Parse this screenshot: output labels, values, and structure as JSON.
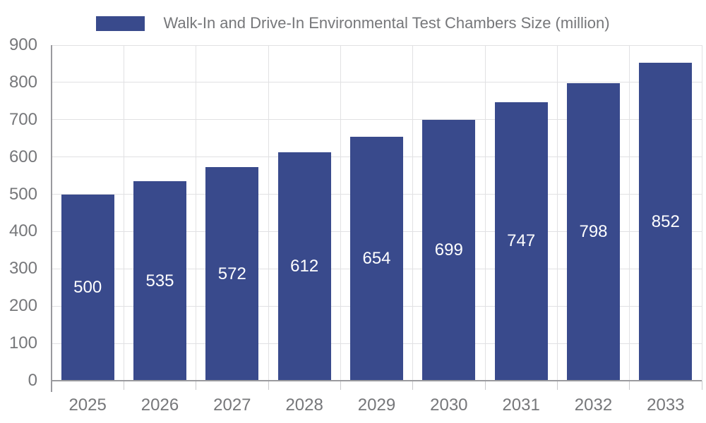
{
  "chart_data": {
    "type": "bar",
    "title": "Walk-In and Drive-In Environmental Test Chambers Size (million)",
    "categories": [
      "2025",
      "2026",
      "2027",
      "2028",
      "2029",
      "2030",
      "2031",
      "2032",
      "2033"
    ],
    "values": [
      500,
      535,
      572,
      612,
      654,
      699,
      747,
      798,
      852
    ],
    "series": [
      {
        "name": "Walk-In and Drive-In Environmental Test Chambers Size (million)",
        "values": [
          500,
          535,
          572,
          612,
          654,
          699,
          747,
          798,
          852
        ]
      }
    ],
    "value_labels": [
      "500",
      "535",
      "572",
      "612",
      "654",
      "699",
      "747",
      "798",
      "852"
    ],
    "xlabel": "",
    "ylabel": "",
    "ylim": [
      0,
      900
    ],
    "ytick_step": 100,
    "y_tick_labels": [
      "0",
      "100",
      "200",
      "300",
      "400",
      "500",
      "600",
      "700",
      "800",
      "900"
    ],
    "grid": true,
    "legend_position": "top",
    "colors": {
      "bar": "#394A8C",
      "value_label": "#FFFFFF",
      "axis_text": "#76777A",
      "legend_text": "#76777A",
      "gridline": "#E1E1E3",
      "axis_line": "#9A9A9E",
      "tick": "#C9C9CC",
      "background": "#FFFFFF"
    }
  }
}
